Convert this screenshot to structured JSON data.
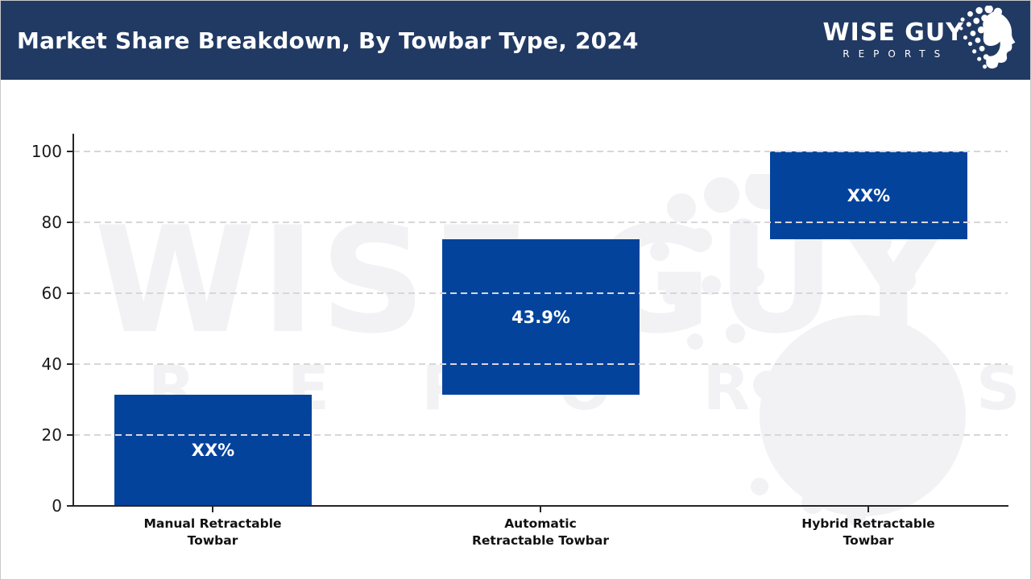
{
  "header": {
    "title": "Market Share Breakdown, By Towbar Type, 2024",
    "logo": {
      "name": "WISE GUY",
      "sub": "REPORTS"
    }
  },
  "watermark": {
    "big": "WISE GUY",
    "sub": "R E P O R T S"
  },
  "chart_data": {
    "type": "bar",
    "variant": "stacked-waterfall",
    "title": "Market Share Breakdown, By Towbar Type, 2024",
    "categories": [
      {
        "line1": "Manual Retractable",
        "line2": "Towbar"
      },
      {
        "line1": "Automatic",
        "line2": "Retractable Towbar"
      },
      {
        "line1": "Hybrid Retractable",
        "line2": "Towbar"
      }
    ],
    "segments": [
      {
        "label": "XX%",
        "start": 0,
        "end": 31.3
      },
      {
        "label": "43.9%",
        "start": 31.3,
        "end": 75.2
      },
      {
        "label": "XX%",
        "start": 75.2,
        "end": 100
      }
    ],
    "yticks": [
      "0",
      "20",
      "40",
      "60",
      "80",
      "100"
    ],
    "ylim": [
      0,
      105
    ],
    "bar_color": "#04439C",
    "grid": {
      "style": "dashed",
      "orientation": "horizontal",
      "color": "#D7D7D9"
    },
    "legend": null
  },
  "colors": {
    "header_bg": "#213A64",
    "bar": "#04439C",
    "watermark": "#F2F2F5",
    "axis": "#262626"
  }
}
